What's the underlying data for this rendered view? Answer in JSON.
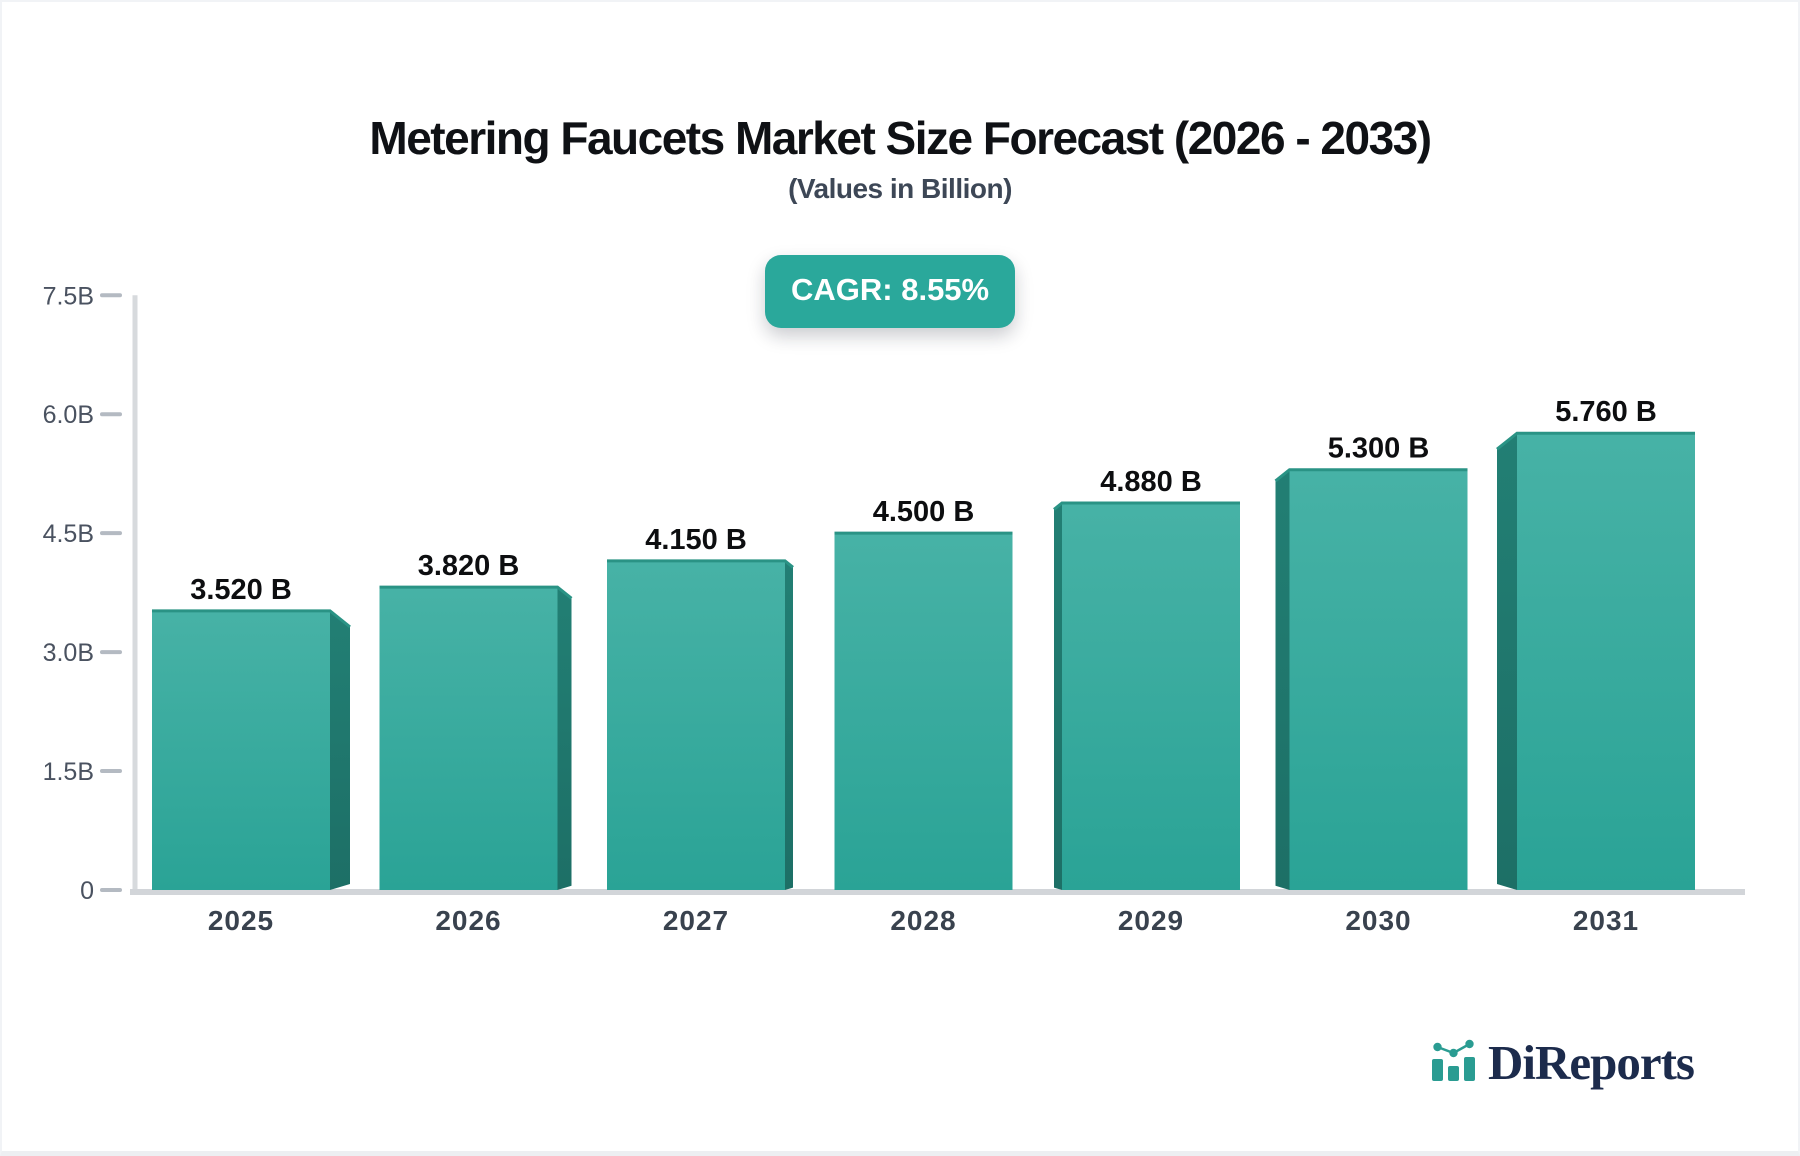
{
  "chart_data": {
    "type": "bar",
    "title": "Metering Faucets Market Size Forecast (2026 - 2033)",
    "subtitle": "(Values in Billion)",
    "badge": "CAGR: 8.55%",
    "categories": [
      "2025",
      "2026",
      "2027",
      "2028",
      "2029",
      "2030",
      "2031"
    ],
    "values": [
      3.52,
      3.82,
      4.15,
      4.5,
      4.88,
      5.3,
      5.76
    ],
    "value_labels": [
      "3.520 B",
      "3.820 B",
      "4.150 B",
      "4.500 B",
      "4.880 B",
      "5.300 B",
      "5.760 B"
    ],
    "y_ticks": [
      {
        "value": 0,
        "label": "0"
      },
      {
        "value": 1.5,
        "label": "1.5B"
      },
      {
        "value": 3,
        "label": "3.0B"
      },
      {
        "value": 4.5,
        "label": "4.5B"
      },
      {
        "value": 6,
        "label": "6.0B"
      },
      {
        "value": 7.5,
        "label": "7.5B"
      }
    ],
    "ylim": [
      0,
      7.5
    ],
    "grid": false,
    "legend": "none",
    "style": "pseudo-3d perspective bars, side faces shaded toward center",
    "colors": {
      "bar_top": "#47b2a6",
      "bar_bottom": "#2aa396",
      "bar_side_top": "#227f74",
      "bar_side_bottom": "#1d6f66",
      "bar_edge": "#2a9385",
      "axis_line": "#d7dadd",
      "baseline": "#d2d5d9",
      "tick_dash": "#b4bac2",
      "tick_text": "#4a5260",
      "x_label_text": "#39424e",
      "value_text": "#0d0e10",
      "title_text": "#0f1115",
      "subtitle_text": "#3d4756",
      "badge_bg": "#2aa89b",
      "badge_text": "#ffffff",
      "logo_text": "#1c2b4c",
      "logo_icon": "#2a9c92"
    }
  },
  "brand": {
    "name": "DiReports"
  }
}
